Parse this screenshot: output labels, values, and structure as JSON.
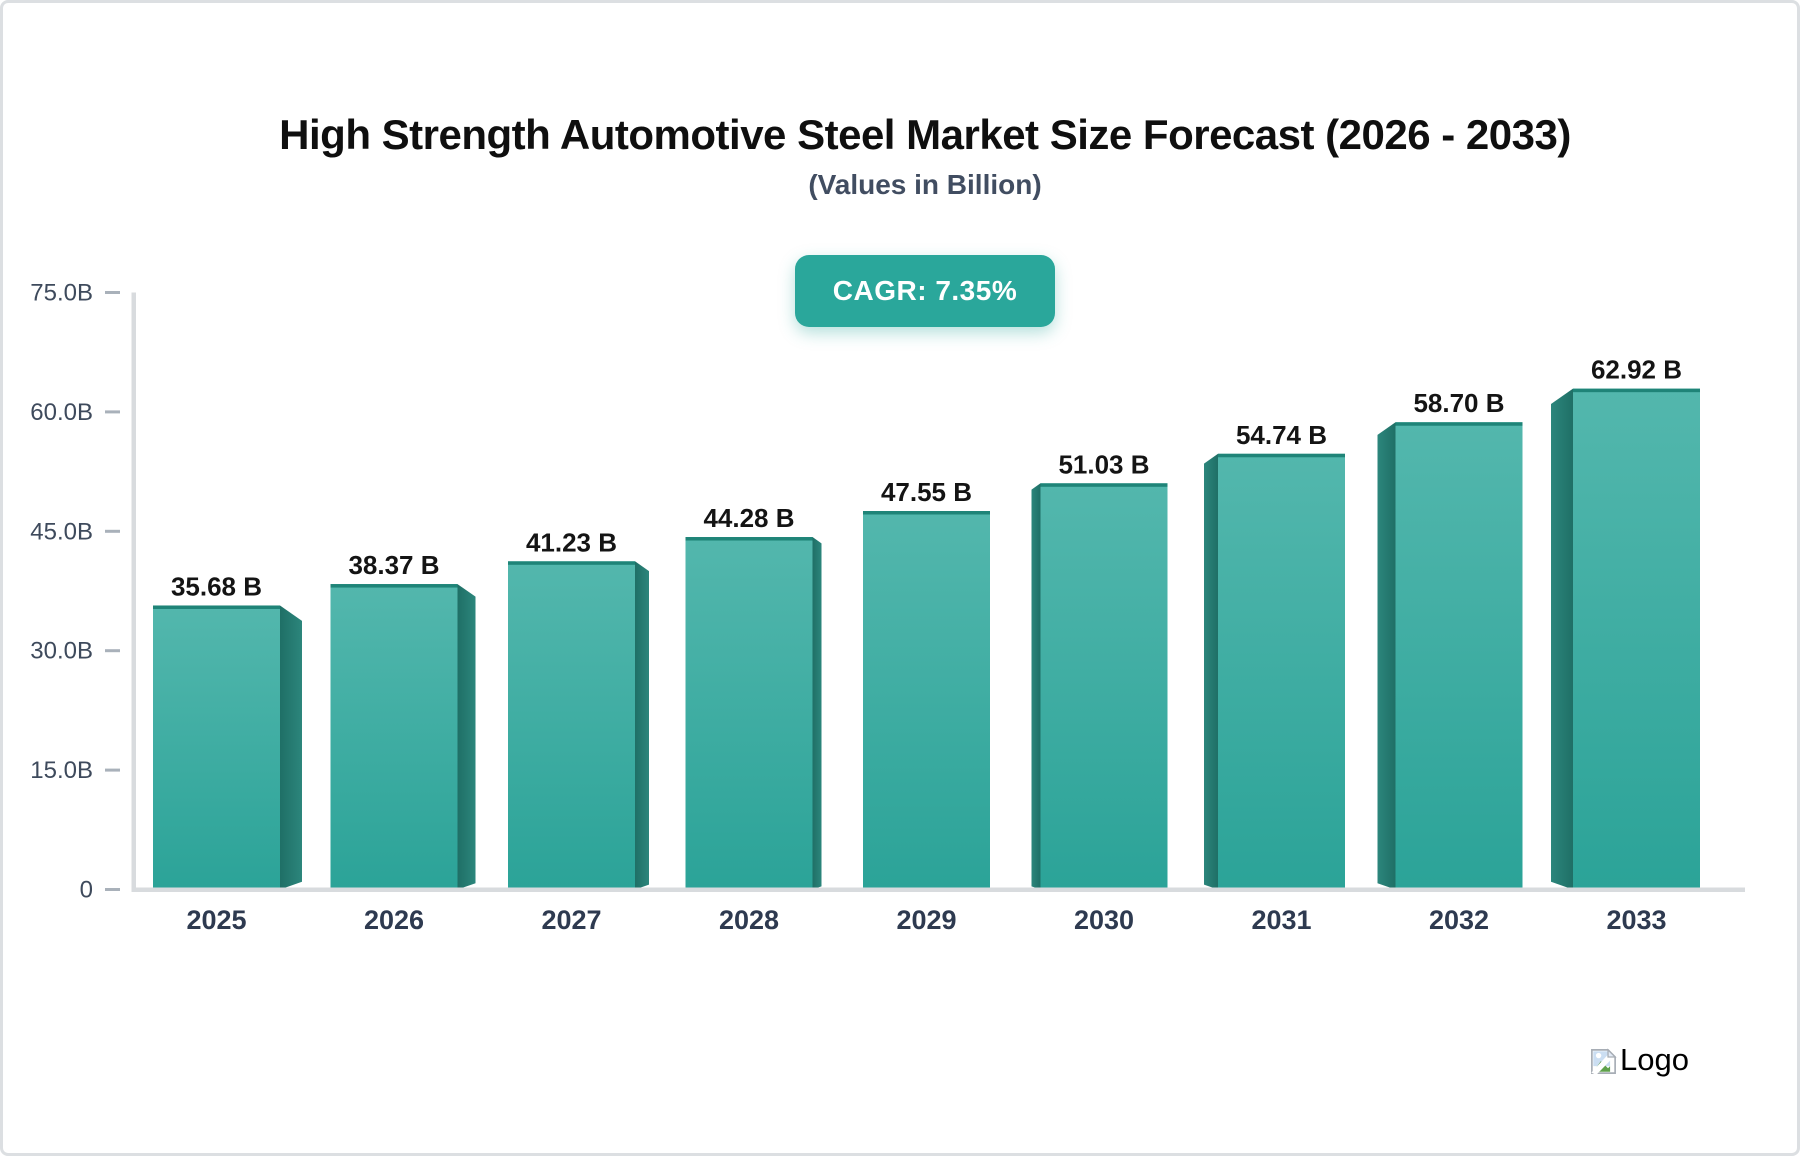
{
  "header": {
    "title": "High Strength Automotive Steel Market Size Forecast (2026 - 2033)",
    "subtitle": "(Values in Billion)"
  },
  "badge": {
    "label": "CAGR: 7.35%"
  },
  "logo": {
    "text": "Logo",
    "icon": "broken-image-icon"
  },
  "colors": {
    "bar_face_top": "#53b7ad",
    "bar_face_bottom": "#2ba398",
    "bar_top_edge": "#1f8478",
    "bar_side_dark": "#1f6f66",
    "bar_side_light": "#2c867c",
    "badge_bg": "#2aa79b",
    "axis_line": "#d8dbde",
    "tick_dash": "#a9b1ba",
    "y_label": "#3e4a5c",
    "x_label": "#2e3a50",
    "value_label": "#141414",
    "title": "#0f0f0f",
    "subtitle": "#414d61"
  },
  "chart_data": {
    "type": "bar",
    "title": "High Strength Automotive Steel Market Size Forecast (2026 - 2033)",
    "subtitle": "(Values in Billion)",
    "cagr_label": "CAGR: 7.35%",
    "categories": [
      "2025",
      "2026",
      "2027",
      "2028",
      "2029",
      "2030",
      "2031",
      "2032",
      "2033"
    ],
    "values": [
      35.68,
      38.37,
      41.23,
      44.28,
      47.55,
      51.03,
      54.74,
      58.7,
      62.92
    ],
    "value_labels": [
      "35.68 B",
      "38.37 B",
      "41.23 B",
      "44.28 B",
      "47.55 B",
      "51.03 B",
      "54.74 B",
      "58.70 B",
      "62.92 B"
    ],
    "unit": "Billion",
    "xlabel": "",
    "ylabel": "",
    "ylim": [
      0,
      75
    ],
    "y_tick_values": [
      0,
      15,
      30,
      45,
      60,
      75
    ],
    "y_tick_labels": [
      "0",
      "15.0B",
      "30.0B",
      "45.0B",
      "60.0B",
      "75.0B"
    ],
    "grid": false,
    "legend": false,
    "style": "3d-perspective-columns"
  }
}
